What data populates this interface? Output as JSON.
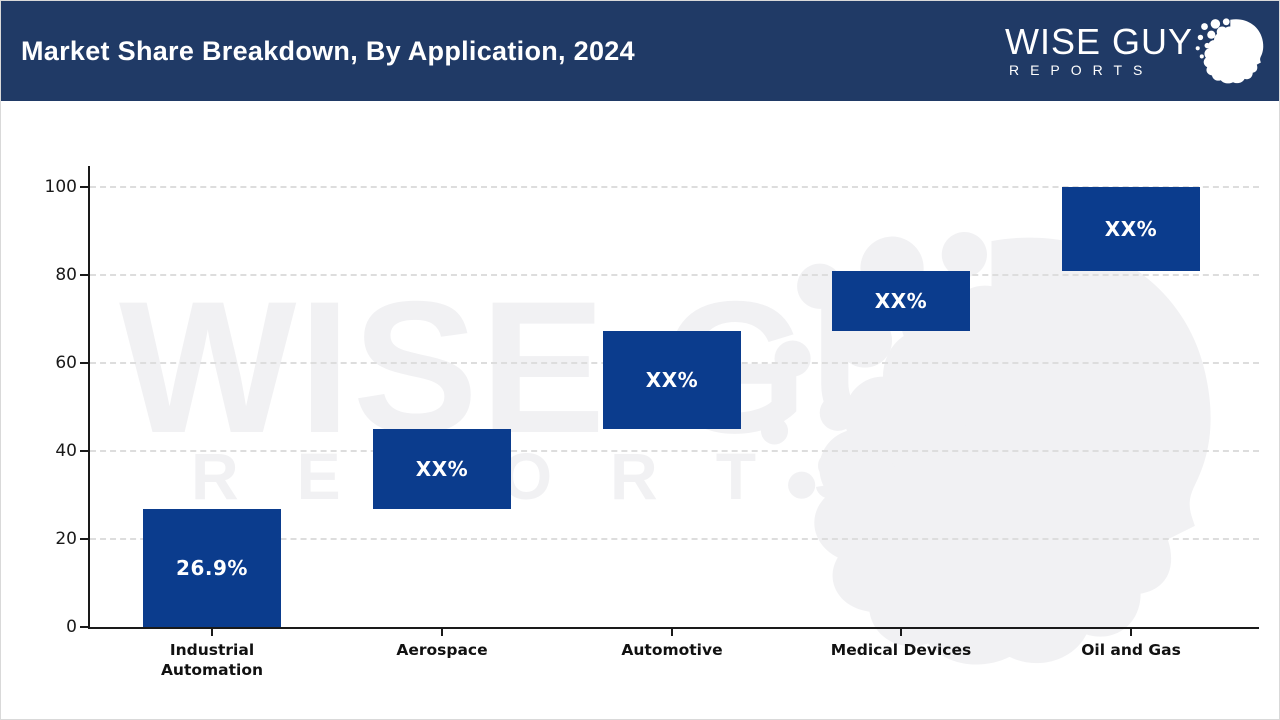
{
  "header": {
    "title": "Market Share Breakdown, By Application, 2024",
    "logo": {
      "line1": "WISE GUY",
      "line2": "REPORTS"
    }
  },
  "watermark": {
    "line1": "WISE GUY",
    "line2": "REPORTS"
  },
  "colors": {
    "header_bg": "#203a66",
    "bar_blue": "#0b3c8d",
    "axis_black": "#1a1a1a",
    "grid_gray": "#dddddd",
    "watermark_gray": "#f1f1f3",
    "label_white": "#ffffff"
  },
  "chart_data": {
    "type": "bar",
    "subtype": "waterfall",
    "title": "Market Share Breakdown, By Application, 2024",
    "categories": [
      "Industrial Automation",
      "Aerospace",
      "Automotive",
      "Medical Devices",
      "Oil and Gas"
    ],
    "categories_display": [
      "Industrial\nAutomation",
      "Aerospace",
      "Automotive",
      "Medical Devices",
      "Oil and Gas"
    ],
    "segments": [
      {
        "category": "Industrial Automation",
        "start": 0,
        "end": 26.9,
        "label": "26.9%"
      },
      {
        "category": "Aerospace",
        "start": 26.9,
        "end": 45.0,
        "label": "XX%"
      },
      {
        "category": "Automotive",
        "start": 45.0,
        "end": 67.3,
        "label": "XX%"
      },
      {
        "category": "Medical Devices",
        "start": 67.3,
        "end": 80.8,
        "label": "XX%"
      },
      {
        "category": "Oil and Gas",
        "start": 80.8,
        "end": 100.0,
        "label": "XX%"
      }
    ],
    "yticks": [
      0,
      20,
      40,
      60,
      80,
      100
    ],
    "ylim": [
      0,
      105
    ],
    "xlabel": "",
    "ylabel": "",
    "grid": "dashed-horizontal",
    "legend": "none",
    "bar_color": "#0b3c8d",
    "value_label_color": "#ffffff"
  }
}
